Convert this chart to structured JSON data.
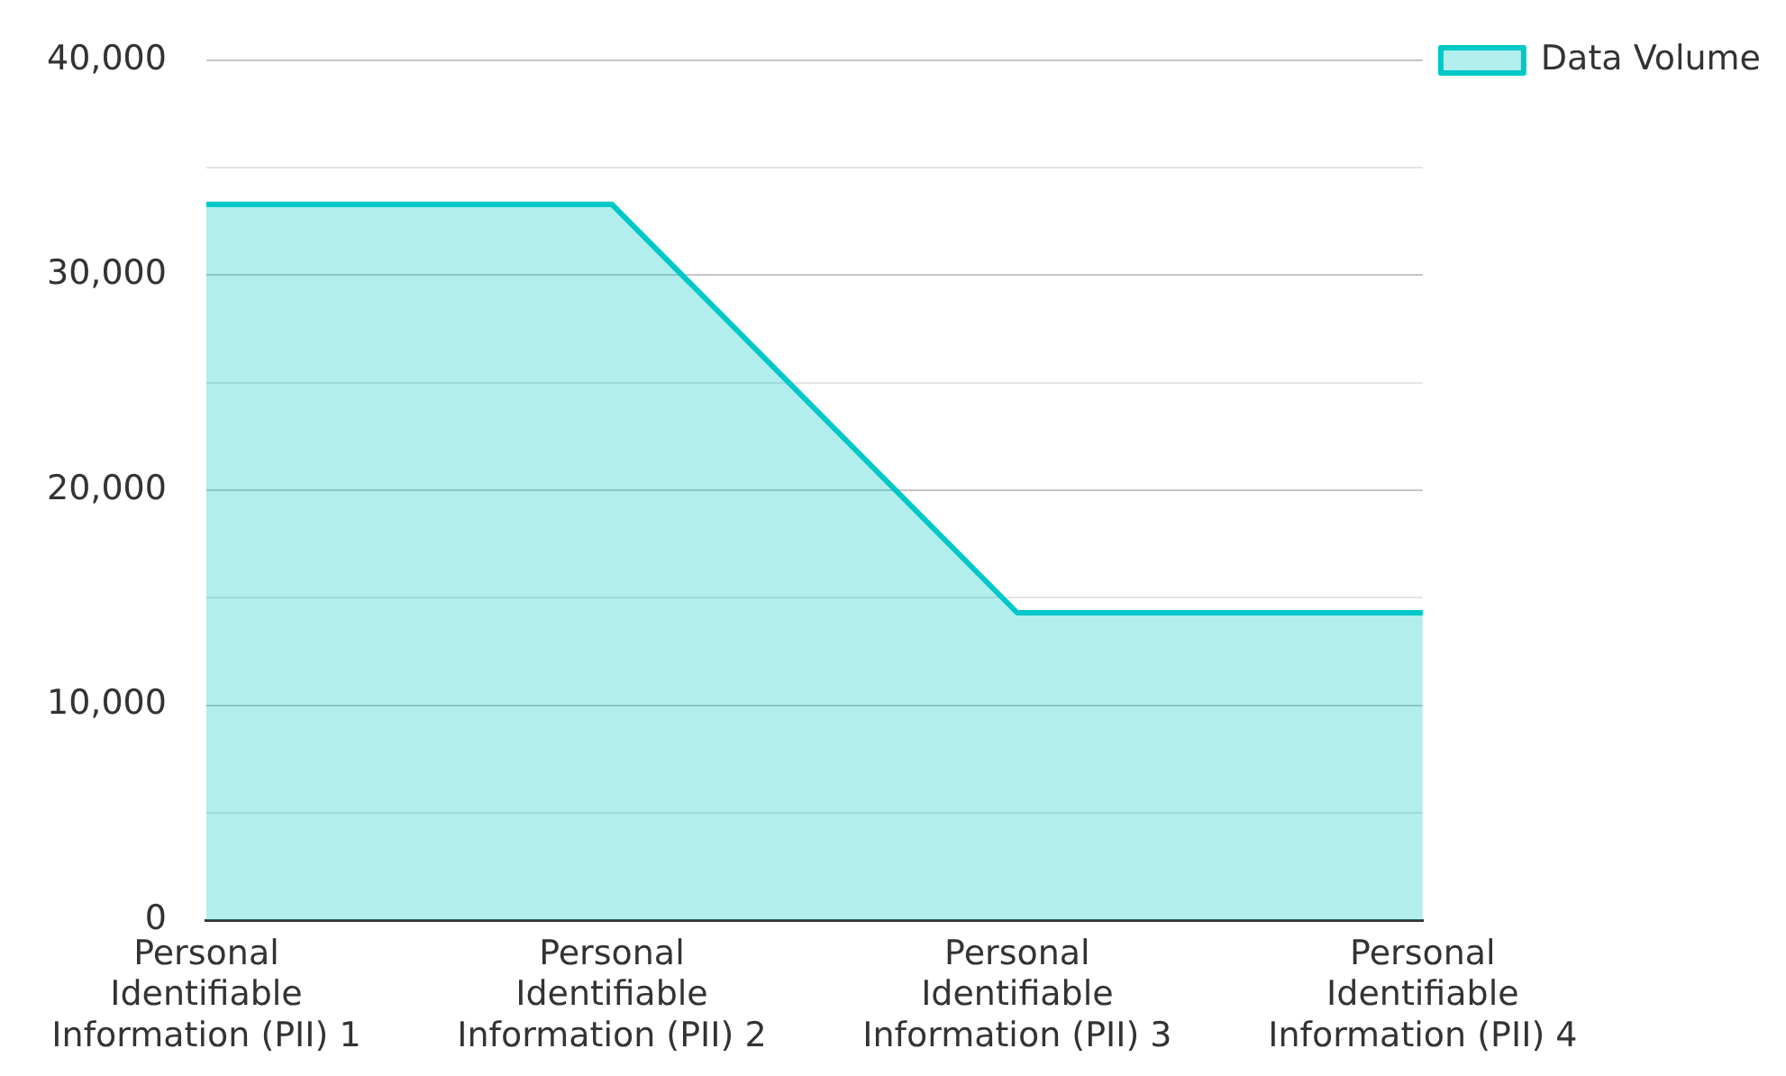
{
  "chart_data": {
    "type": "area",
    "categories": [
      "Personal Identifiable Information (PII) 1",
      "Personal Identifiable Information (PII) 2",
      "Personal Identifiable Information (PII) 3",
      "Personal Identifiable Information (PII) 4"
    ],
    "series": [
      {
        "name": "Data Volume",
        "color": "#00c8c8",
        "values": [
          33300,
          33300,
          14300,
          14300
        ]
      }
    ],
    "ylim": [
      0,
      40000
    ],
    "yticks": [
      {
        "value": 0,
        "label": "0"
      },
      {
        "value": 5000,
        "label": null
      },
      {
        "value": 10000,
        "label": "10,000"
      },
      {
        "value": 15000,
        "label": null
      },
      {
        "value": 20000,
        "label": "20,000"
      },
      {
        "value": 25000,
        "label": null
      },
      {
        "value": 30000,
        "label": "30,000"
      },
      {
        "value": 35000,
        "label": null
      },
      {
        "value": 40000,
        "label": "40,000"
      }
    ],
    "grid": "y",
    "legend": "top right",
    "marker": "none",
    "line_style": "solid"
  }
}
